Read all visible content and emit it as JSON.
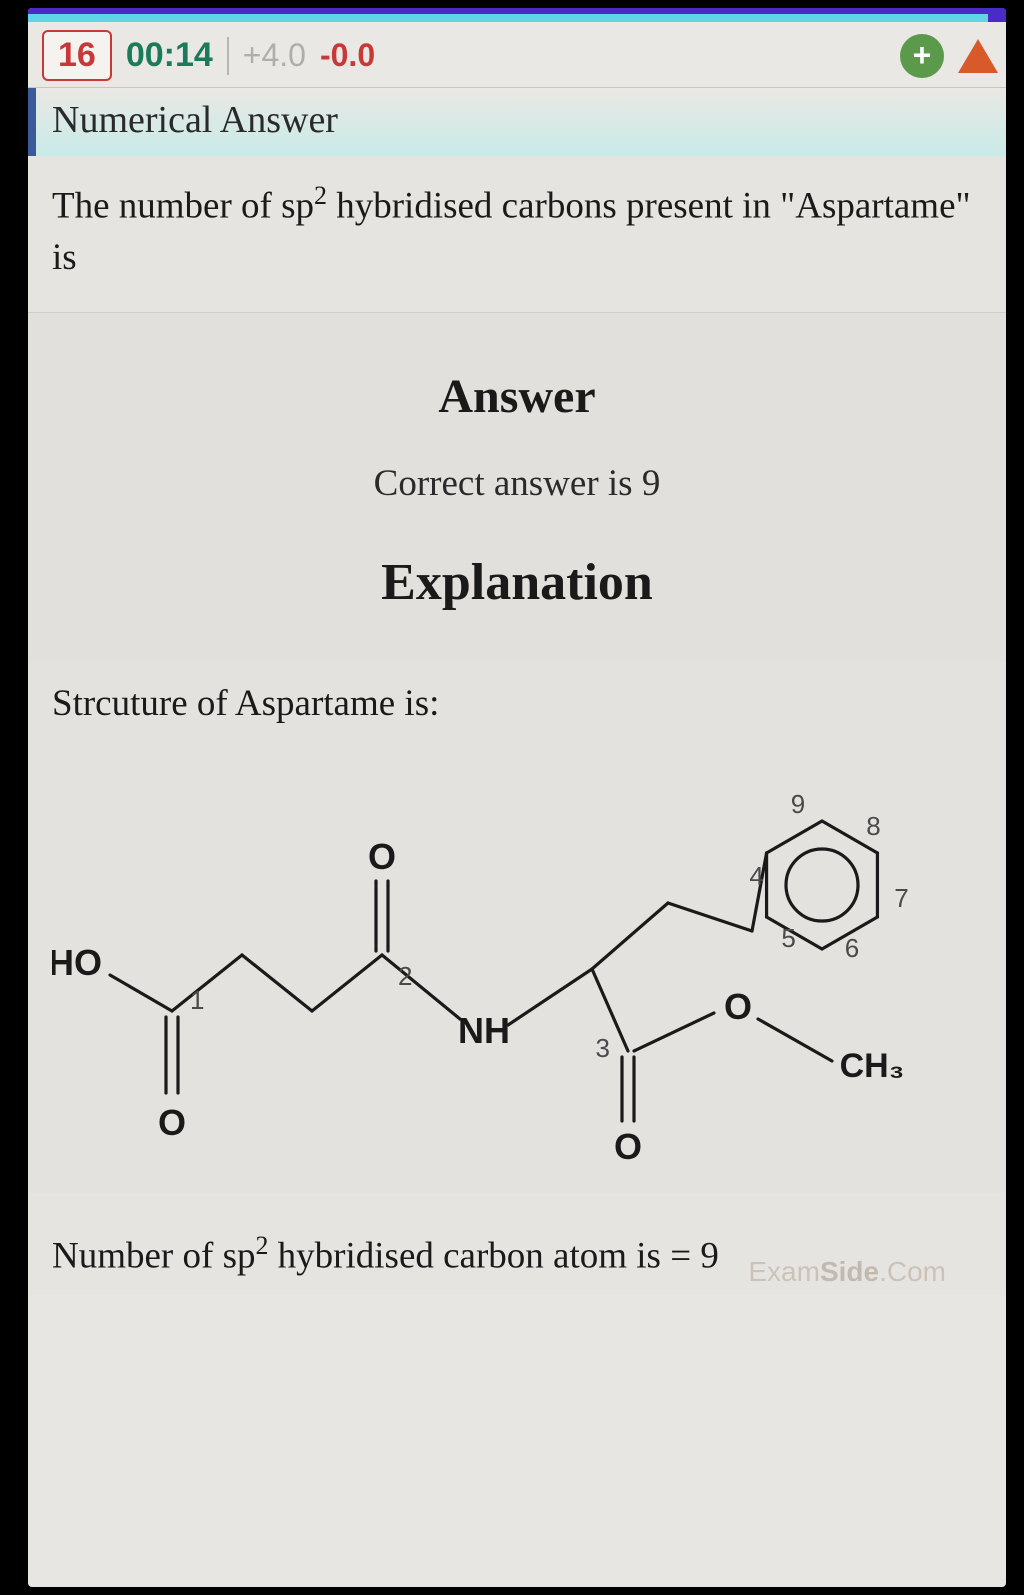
{
  "header": {
    "question_number": "16",
    "timer": "00:14",
    "marks_positive": "+4.0",
    "marks_negative": "-0.0",
    "plus_glyph": "+"
  },
  "section_label": "Numerical Answer",
  "question": {
    "pre": "The number of sp",
    "sup": "2",
    "post": " hybridised carbons present in \"Aspartame\" is"
  },
  "answer": {
    "title": "Answer",
    "text": "Correct answer is 9"
  },
  "explanation": {
    "title": "Explanation",
    "intro": "Strcuture of Aspartame is:"
  },
  "structure": {
    "labels": {
      "HO": "HO",
      "O1": "O",
      "O2": "O",
      "O3": "O",
      "O4": "O",
      "NH": "NH",
      "CH3": "CH₃",
      "n1": "1",
      "n2": "2",
      "n3": "3",
      "n4": "4",
      "n5": "5",
      "n6": "6",
      "n7": "7",
      "n8": "8",
      "n9": "9"
    },
    "colors": {
      "bond": "#1a1a1a",
      "text": "#1a1a1a",
      "num": "#4a4a4a",
      "bg": "#e4e2de"
    },
    "stroke_width": 3.2
  },
  "watermark": {
    "a": "Exam",
    "b": "Side",
    "c": ".Com"
  },
  "conclusion": {
    "pre": "Number of sp",
    "sup": "2",
    "post": " hybridised carbon atom is = 9"
  }
}
